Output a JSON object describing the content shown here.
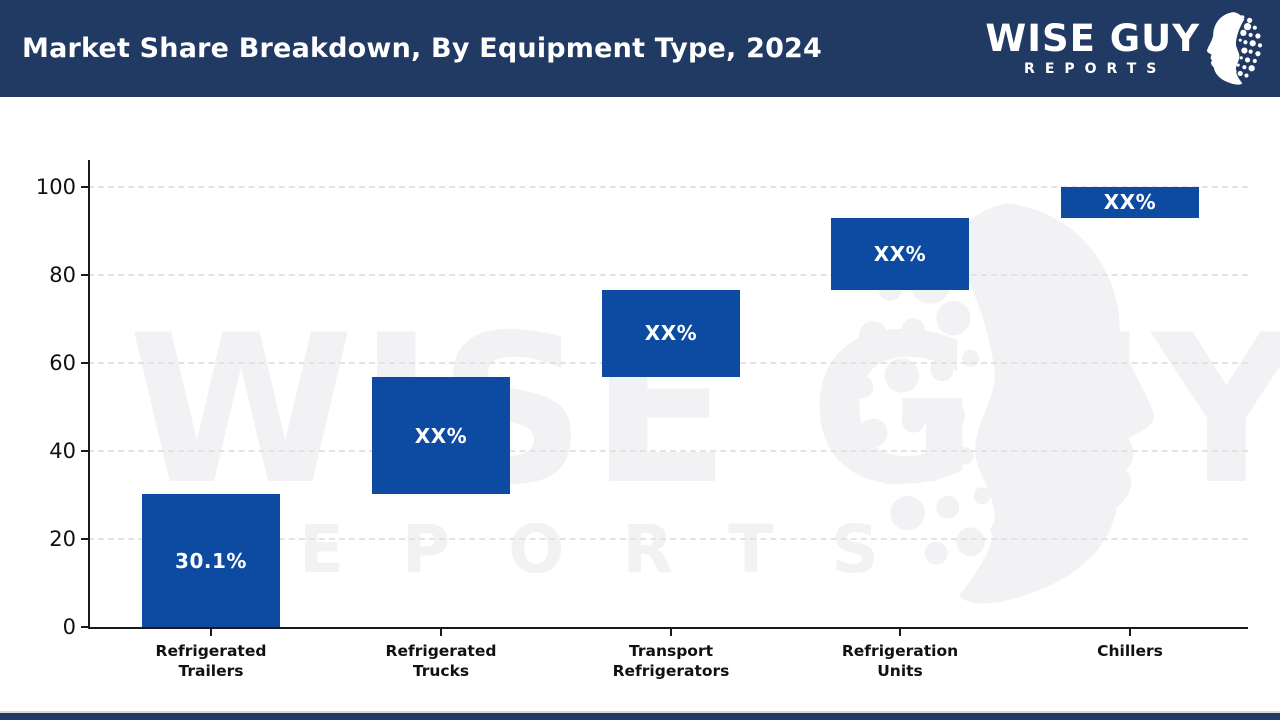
{
  "header": {
    "title": "Market Share Breakdown, By Equipment Type, 2024",
    "logo": {
      "line1": "WISE GUY",
      "line2": "REPORTS"
    }
  },
  "watermark": {
    "line1": "WISE GUY",
    "line2": "REPORTS"
  },
  "colors": {
    "header_bg": "#203A64",
    "footer_bg": "#203A64",
    "bar": "#0C4BA1",
    "bar_label_text": "#FFFFFF",
    "gridline": "#E3E3E3",
    "axis": "#1A1A1A",
    "watermark": "#F2F2F4"
  },
  "chart_data": {
    "type": "bar",
    "subtype": "waterfall",
    "title": "Market Share Breakdown, By Equipment Type, 2024",
    "categories": [
      "Refrigerated Trailers",
      "Refrigerated Trucks",
      "Transport Refrigerators",
      "Refrigeration Units",
      "Chillers"
    ],
    "category_lines": [
      [
        "Refrigerated",
        "Trailers"
      ],
      [
        "Refrigerated",
        "Trucks"
      ],
      [
        "Transport",
        "Refrigerators"
      ],
      [
        "Refrigeration",
        "Units"
      ],
      [
        "Chillers"
      ]
    ],
    "segments": [
      {
        "category": "Refrigerated Trailers",
        "start": 0,
        "end": 30.1,
        "label": "30.1%"
      },
      {
        "category": "Refrigerated Trucks",
        "start": 30.1,
        "end": 56.8,
        "label": "XX%"
      },
      {
        "category": "Transport Refrigerators",
        "start": 56.8,
        "end": 76.5,
        "label": "XX%"
      },
      {
        "category": "Refrigeration Units",
        "start": 76.5,
        "end": 92.9,
        "label": "XX%"
      },
      {
        "category": "Chillers",
        "start": 92.9,
        "end": 100,
        "label": "XX%"
      }
    ],
    "bar_labels": [
      "30.1%",
      "XX%",
      "XX%",
      "XX%",
      "XX%"
    ],
    "yticks": [
      0,
      20,
      40,
      60,
      80,
      100
    ],
    "ylim": [
      0,
      106
    ],
    "xlabel": "",
    "ylabel": "",
    "grid": "horizontal-dashed",
    "legend": "none"
  }
}
